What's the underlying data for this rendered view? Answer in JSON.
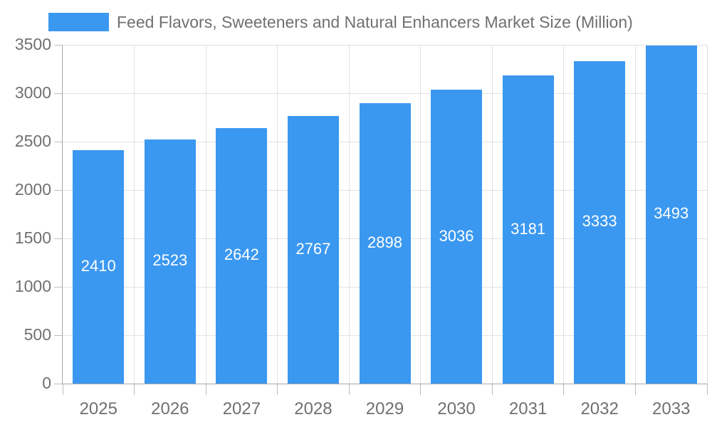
{
  "chart_data": {
    "type": "bar",
    "title": "Feed Flavors, Sweeteners and Natural Enhancers Market Size (Million)",
    "series_name": "Feed Flavors, Sweeteners and Natural Enhancers Market Size (Million)",
    "categories": [
      "2025",
      "2026",
      "2027",
      "2028",
      "2029",
      "2030",
      "2031",
      "2032",
      "2033"
    ],
    "values": [
      2410,
      2523,
      2642,
      2767,
      2898,
      3036,
      3181,
      3333,
      3493
    ],
    "bar_labels": [
      "2410",
      "2523",
      "2642",
      "2767",
      "2898",
      "3036",
      "3181",
      "3333",
      "3493"
    ],
    "xlabel": "",
    "ylabel": "",
    "ylim": [
      0,
      3500
    ],
    "yticks": [
      0,
      500,
      1000,
      1500,
      2000,
      2500,
      3000,
      3500
    ],
    "ytick_labels": [
      "0",
      "500",
      "1000",
      "1500",
      "2000",
      "2500",
      "3000",
      "3500"
    ],
    "grid": true,
    "legend_position": "top-left",
    "bar_label_position": "inside-center",
    "colors": {
      "bar": "#3b98f0",
      "bar_value_text": "#ffffff",
      "title_text": "#707070",
      "tick_text": "#707070",
      "gridline": "#e2e2e2",
      "axis_line": "#a8a8a8",
      "tick_line": "#bdbdbd",
      "background": "#ffffff"
    }
  }
}
